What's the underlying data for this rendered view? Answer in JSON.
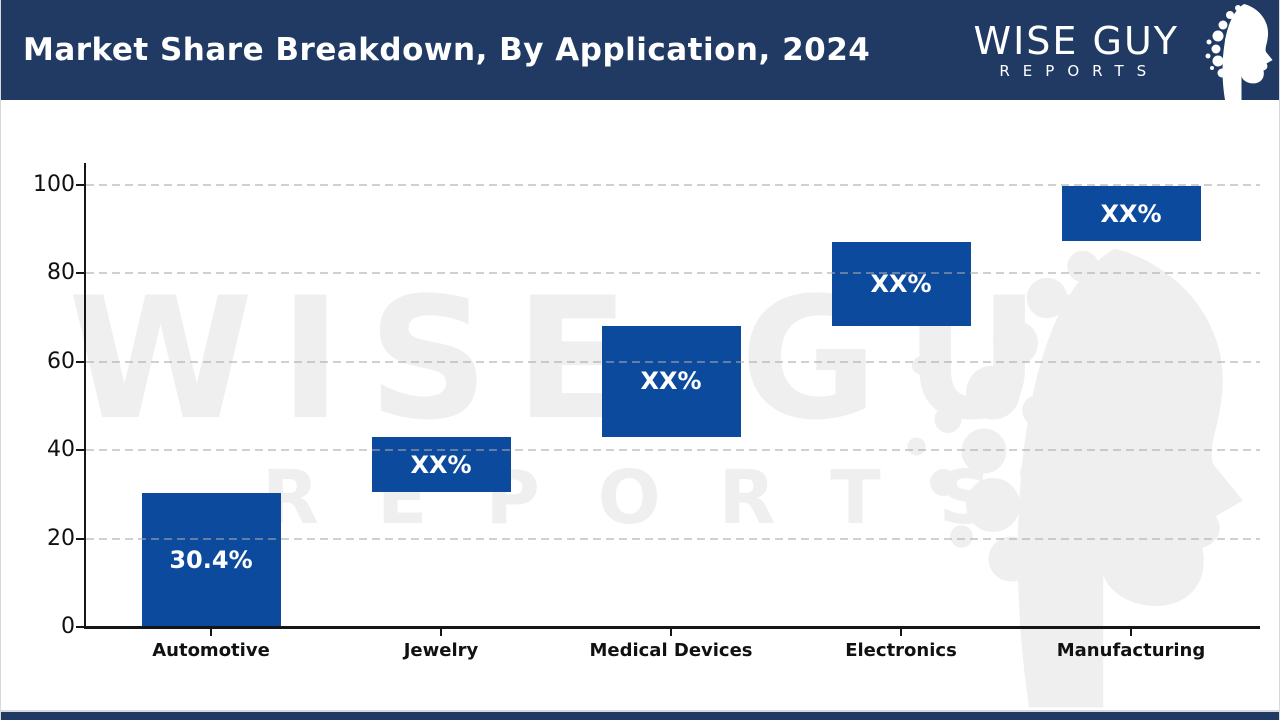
{
  "header": {
    "title": "Market Share Breakdown, By Application, 2024",
    "logo": {
      "line1": "WISE GUY",
      "line2": "REPORTS"
    }
  },
  "watermark": {
    "line1": "WISE GUY",
    "line2": "REPORTS"
  },
  "colors": {
    "header_bg": "#203a64",
    "bar": "#0c4a9e",
    "axis": "#161616",
    "grid": "#aaaaaa",
    "bar_label": "#ffffff",
    "watermark": "#efefef",
    "footer_bar": "#203a64"
  },
  "chart_data": {
    "type": "bar",
    "variant": "waterfall",
    "title": "Market Share Breakdown, By Application, 2024",
    "categories": [
      "Automotive",
      "Jewelry",
      "Medical Devices",
      "Electronics",
      "Manufacturing"
    ],
    "segments": [
      {
        "category": "Automotive",
        "start": 0,
        "end": 30.4,
        "label": "30.4%"
      },
      {
        "category": "Jewelry",
        "start": 30.5,
        "end": 43.0,
        "label": "XX%"
      },
      {
        "category": "Medical Devices",
        "start": 43.0,
        "end": 68.1,
        "label": "XX%"
      },
      {
        "category": "Electronics",
        "start": 68.1,
        "end": 87.1,
        "label": "XX%"
      },
      {
        "category": "Manufacturing",
        "start": 87.3,
        "end": 99.8,
        "label": "XX%"
      }
    ],
    "yticks": [
      0,
      20,
      40,
      60,
      80,
      100
    ],
    "ylim": [
      0,
      105
    ],
    "xlabel": "",
    "ylabel": "",
    "grid": "horizontal-dashed",
    "legend": "none"
  }
}
